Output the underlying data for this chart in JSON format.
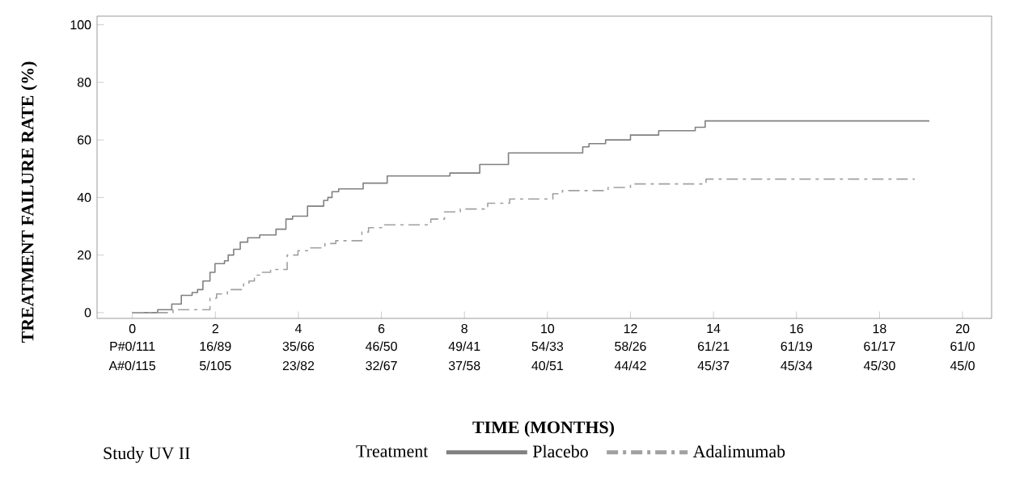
{
  "chart_data": {
    "type": "step",
    "xlabel": "TIME (MONTHS)",
    "ylabel": "TREATMENT FAILURE RATE (%)",
    "legend_title": "Treatment",
    "legend": "bottom",
    "xlim": [
      -0.85,
      20.7
    ],
    "ylim": [
      -2,
      103
    ],
    "xticks": [
      0,
      2,
      4,
      6,
      8,
      10,
      12,
      14,
      16,
      18,
      20
    ],
    "yticks": [
      0,
      20,
      40,
      60,
      80,
      100
    ],
    "series": [
      {
        "name": "Placebo",
        "color": "#808080",
        "line_style": "solid",
        "x": [
          0,
          0.61,
          0.95,
          1.18,
          1.44,
          1.57,
          1.7,
          1.87,
          1.99,
          2.22,
          2.31,
          2.44,
          2.6,
          2.78,
          3.07,
          3.46,
          3.7,
          3.86,
          4.22,
          4.61,
          4.71,
          4.81,
          4.97,
          5.56,
          6.14,
          7.65,
          8.37,
          9.06,
          10.85,
          11.0,
          11.4,
          12.0,
          12.68,
          13.56,
          13.8,
          19.2
        ],
        "values": [
          0,
          1,
          3,
          6,
          7,
          8,
          11,
          14,
          17,
          18,
          20,
          22,
          24.5,
          26,
          27,
          29,
          32.5,
          33.5,
          37,
          39,
          40,
          42,
          43,
          45,
          47.5,
          48.5,
          51.5,
          55.5,
          57.6,
          58.7,
          60,
          61.7,
          63.2,
          64.4,
          66.6,
          66.6
        ]
      },
      {
        "name": "Adalimumab",
        "color": "#a0a0a0",
        "line_style": "dashed",
        "x": [
          0,
          0.98,
          1.87,
          2.03,
          2.29,
          2.68,
          2.81,
          2.94,
          3.07,
          3.33,
          3.73,
          3.99,
          4.25,
          4.64,
          4.9,
          5.53,
          5.69,
          6.01,
          7.19,
          7.52,
          7.9,
          8.56,
          9.09,
          10.13,
          10.36,
          11.46,
          12.0,
          13.82,
          18.85
        ],
        "values": [
          0,
          1,
          5,
          6.5,
          8,
          10,
          11,
          13,
          14,
          15,
          20,
          21.5,
          22.5,
          24,
          25,
          28,
          29.5,
          30.5,
          32.5,
          35,
          36,
          38,
          39.5,
          41.3,
          42.4,
          43.5,
          44.7,
          46.4,
          46.4
        ]
      }
    ],
    "annotations": [
      "Study UV II",
      "P#0/111",
      "16/89",
      "35/66",
      "46/50",
      "49/41",
      "54/33",
      "58/26",
      "61/21",
      "61/19",
      "61/17",
      "61/0",
      "A#0/115",
      "5/105",
      "23/82",
      "32/67",
      "37/58",
      "40/51",
      "44/42",
      "45/37",
      "45/34",
      "45/30",
      "45/0"
    ]
  }
}
